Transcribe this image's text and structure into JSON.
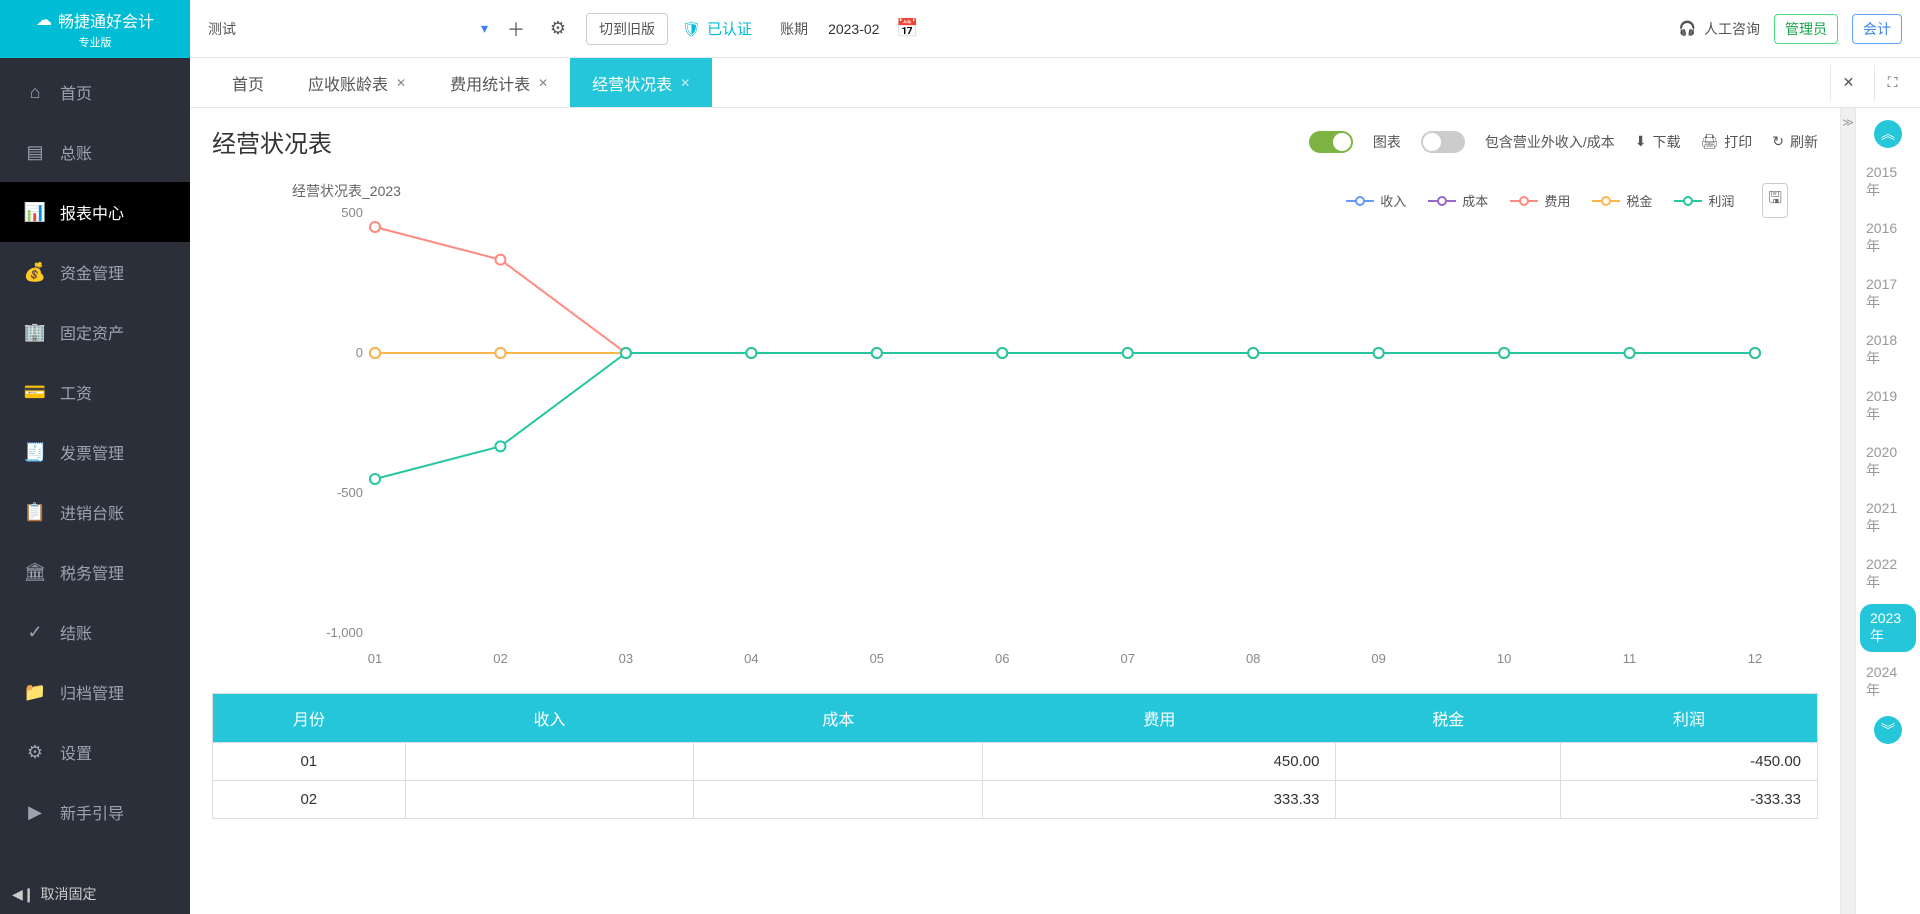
{
  "logo": {
    "text": "畅捷通好会计",
    "sub": "专业版"
  },
  "sidebar": {
    "items": [
      {
        "label": "首页",
        "icon": "⌂"
      },
      {
        "label": "总账",
        "icon": "▤"
      },
      {
        "label": "报表中心",
        "icon": "📊"
      },
      {
        "label": "资金管理",
        "icon": "💰"
      },
      {
        "label": "固定资产",
        "icon": "🏢"
      },
      {
        "label": "工资",
        "icon": "💳"
      },
      {
        "label": "发票管理",
        "icon": "🧾"
      },
      {
        "label": "进销台账",
        "icon": "📋"
      },
      {
        "label": "税务管理",
        "icon": "🏛"
      },
      {
        "label": "结账",
        "icon": "✓"
      },
      {
        "label": "归档管理",
        "icon": "📁"
      },
      {
        "label": "设置",
        "icon": "⚙"
      },
      {
        "label": "新手引导",
        "icon": "▶"
      }
    ],
    "active_index": 2,
    "footer": "取消固定"
  },
  "topbar": {
    "company": "测试",
    "switch_old": "切到旧版",
    "verified": "已认证",
    "period_label": "账期",
    "period_value": "2023-02",
    "consult": "人工咨询",
    "badge1": "管理员",
    "badge2": "会计"
  },
  "tabs": [
    {
      "label": "首页",
      "closable": false
    },
    {
      "label": "应收账龄表",
      "closable": true
    },
    {
      "label": "费用统计表",
      "closable": true
    },
    {
      "label": "经营状况表",
      "closable": true
    }
  ],
  "tabs_active": 3,
  "page": {
    "title": "经营状况表",
    "toggle1_label": "图表",
    "toggle2_label": "包含营业外收入/成本",
    "download": "下载",
    "print": "打印",
    "refresh": "刷新"
  },
  "chart": {
    "title": "经营状况表_2023",
    "type": "line",
    "x_categories": [
      "01",
      "02",
      "03",
      "04",
      "05",
      "06",
      "07",
      "08",
      "09",
      "10",
      "11",
      "12"
    ],
    "y_ticks": [
      500,
      0,
      -500,
      -1000
    ],
    "ylim": [
      -1000,
      500
    ],
    "series": [
      {
        "name": "收入",
        "color": "#6699ff",
        "data": [
          0,
          0,
          0,
          0,
          0,
          0,
          0,
          0,
          0,
          0,
          0,
          0
        ]
      },
      {
        "name": "成本",
        "color": "#9966cc",
        "data": [
          0,
          0,
          0,
          0,
          0,
          0,
          0,
          0,
          0,
          0,
          0,
          0
        ]
      },
      {
        "name": "费用",
        "color": "#ff8a80",
        "data": [
          450,
          333.33,
          0,
          0,
          0,
          0,
          0,
          0,
          0,
          0,
          0,
          0
        ]
      },
      {
        "name": "税金",
        "color": "#ffb74d",
        "data": [
          0,
          0,
          0,
          0,
          0,
          0,
          0,
          0,
          0,
          0,
          0,
          0
        ]
      },
      {
        "name": "利润",
        "color": "#26c6a0",
        "data": [
          -450,
          -333.33,
          0,
          0,
          0,
          0,
          0,
          0,
          0,
          0,
          0,
          0
        ]
      }
    ],
    "marker_radius": 5,
    "line_width": 2,
    "grid_color": "#eee",
    "axis_color": "#999",
    "label_color": "#888",
    "label_fontsize": 13
  },
  "table": {
    "columns": [
      "月份",
      "收入",
      "成本",
      "费用",
      "税金",
      "利润"
    ],
    "col_widths": [
      "12%",
      "18%",
      "18%",
      "22%",
      "14%",
      "16%"
    ],
    "rows": [
      [
        "01",
        "",
        "",
        "450.00",
        "",
        "-450.00"
      ],
      [
        "02",
        "",
        "",
        "333.33",
        "",
        "-333.33"
      ]
    ]
  },
  "years": {
    "list": [
      "2015年",
      "2016年",
      "2017年",
      "2018年",
      "2019年",
      "2020年",
      "2021年",
      "2022年",
      "2023年",
      "2024年"
    ],
    "active_index": 8
  },
  "colors": {
    "brand": "#00bcd4",
    "teal": "#26c6da",
    "sidebar_bg": "#2a2f3a"
  }
}
